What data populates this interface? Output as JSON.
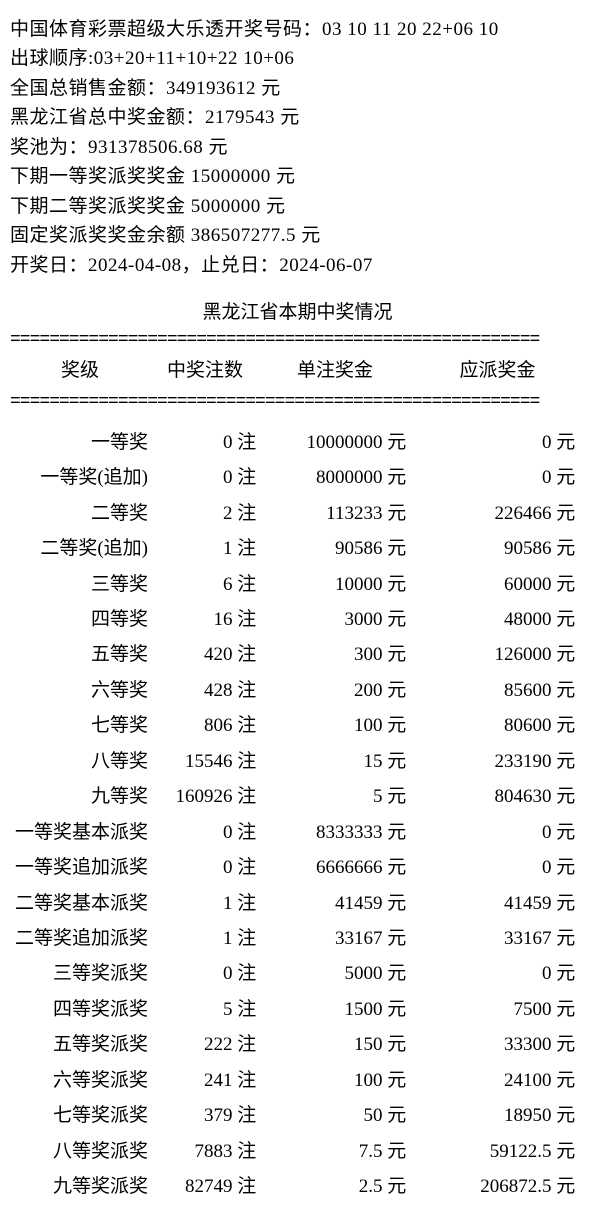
{
  "header": {
    "line1_label": "中国体育彩票超级大乐透开奖号码：",
    "line1_numbers": "03 10 11 20 22+06 10",
    "line2_label": "出球顺序:",
    "line2_value": "03+20+11+10+22 10+06",
    "line3_label": "全国总销售金额：",
    "line3_value": "349193612 元",
    "line4_label": "黑龙江省总中奖金额：",
    "line4_value": "2179543 元",
    "line5_label": "奖池为：",
    "line5_value": "931378506.68 元",
    "line6": "下期一等奖派奖奖金 15000000 元",
    "line7": "下期二等奖派奖奖金 5000000 元",
    "line8": "固定奖派奖奖金余额 386507277.5 元",
    "line9_label": "开奖日：",
    "line9_date1": "2024-04-08",
    "line9_mid": "，止兑日：",
    "line9_date2": "2024-06-07"
  },
  "table": {
    "title": "黑龙江省本期中奖情况",
    "divider": "======================================================",
    "cols": {
      "tier": "奖级",
      "count": "中奖注数",
      "unit": "单注奖金",
      "payout": "应派奖金"
    },
    "count_suffix": "注",
    "yuan_suffix": "元",
    "rows": [
      {
        "tier": "一等奖",
        "count": "0",
        "unit": "10000000",
        "payout": "0"
      },
      {
        "tier": "一等奖(追加)",
        "count": "0",
        "unit": "8000000",
        "payout": "0"
      },
      {
        "tier": "二等奖",
        "count": "2",
        "unit": "113233",
        "payout": "226466"
      },
      {
        "tier": "二等奖(追加)",
        "count": "1",
        "unit": "90586",
        "payout": "90586"
      },
      {
        "tier": "三等奖",
        "count": "6",
        "unit": "10000",
        "payout": "60000"
      },
      {
        "tier": "四等奖",
        "count": "16",
        "unit": "3000",
        "payout": "48000"
      },
      {
        "tier": "五等奖",
        "count": "420",
        "unit": "300",
        "payout": "126000"
      },
      {
        "tier": "六等奖",
        "count": "428",
        "unit": "200",
        "payout": "85600"
      },
      {
        "tier": "七等奖",
        "count": "806",
        "unit": "100",
        "payout": "80600"
      },
      {
        "tier": "八等奖",
        "count": "15546",
        "unit": "15",
        "payout": "233190"
      },
      {
        "tier": "九等奖",
        "count": "160926",
        "unit": "5",
        "payout": "804630"
      },
      {
        "tier": "一等奖基本派奖",
        "count": "0",
        "unit": "8333333",
        "payout": "0"
      },
      {
        "tier": "一等奖追加派奖",
        "count": "0",
        "unit": "6666666",
        "payout": "0"
      },
      {
        "tier": "二等奖基本派奖",
        "count": "1",
        "unit": "41459",
        "payout": "41459"
      },
      {
        "tier": "二等奖追加派奖",
        "count": "1",
        "unit": "33167",
        "payout": "33167"
      },
      {
        "tier": "三等奖派奖",
        "count": "0",
        "unit": "5000",
        "payout": "0"
      },
      {
        "tier": "四等奖派奖",
        "count": "5",
        "unit": "1500",
        "payout": "7500"
      },
      {
        "tier": "五等奖派奖",
        "count": "222",
        "unit": "150",
        "payout": "33300"
      },
      {
        "tier": "六等奖派奖",
        "count": "241",
        "unit": "100",
        "payout": "24100"
      },
      {
        "tier": "七等奖派奖",
        "count": "379",
        "unit": "50",
        "payout": "18950"
      },
      {
        "tier": "八等奖派奖",
        "count": "7883",
        "unit": "7.5",
        "payout": "59122.5"
      },
      {
        "tier": "九等奖派奖",
        "count": "82749",
        "unit": "2.5",
        "payout": "206872.5"
      }
    ]
  },
  "style": {
    "font_family": "SimSun",
    "font_size_pt": 14,
    "text_color": "#000000",
    "background_color": "#ffffff"
  }
}
